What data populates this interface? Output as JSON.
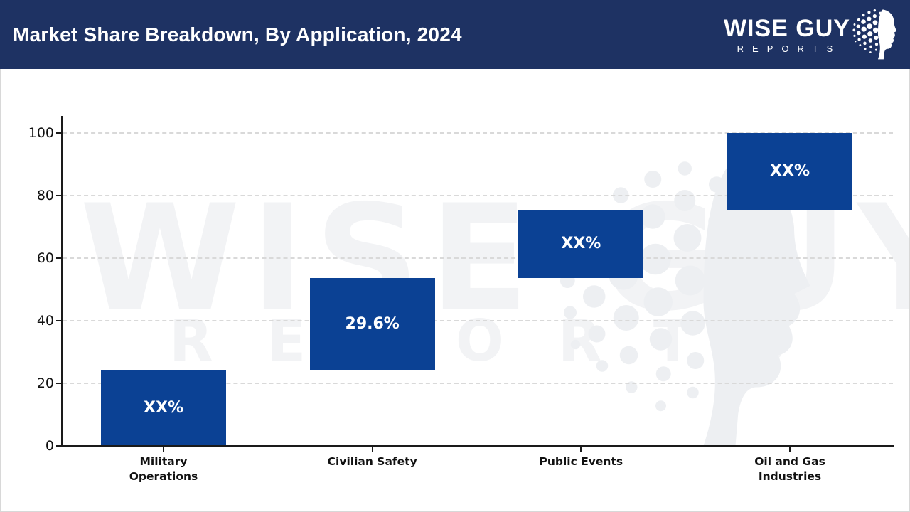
{
  "header": {
    "title": "Market Share Breakdown, By Application, 2024",
    "logo": {
      "wordmark": "WISE GUY",
      "subtext": "REPORTS"
    }
  },
  "watermark": {
    "wordmark": "WISE GUY",
    "subtext": "REPORTS"
  },
  "colors": {
    "header_bg": "#1e3263",
    "bar": "#0b4194",
    "bar_label_text": "#ffffff",
    "axis": "#1a1a1a",
    "grid": "#d9d9d9",
    "tick_label_text": "#111111",
    "watermark_text": "#f2f3f5",
    "watermark_face": "#edeff2",
    "edge_border": "#d8d8d8",
    "page_bg": "#ffffff"
  },
  "chart_data": {
    "type": "bar",
    "subtype": "floating-waterfall",
    "title": "Market Share Breakdown, By Application, 2024",
    "categories": [
      "Military\nOperations",
      "Civilian Safety",
      "Public Events",
      "Oil and Gas\nIndustries"
    ],
    "segments": [
      {
        "category": "Military\nOperations",
        "start": 0,
        "end": 24,
        "value": 24,
        "label": "XX%"
      },
      {
        "category": "Civilian Safety",
        "start": 24,
        "end": 53.6,
        "value": 29.6,
        "label": "29.6%"
      },
      {
        "category": "Public Events",
        "start": 53.6,
        "end": 75.4,
        "value": 21.8,
        "label": "XX%"
      },
      {
        "category": "Oil and Gas\nIndustries",
        "start": 75.4,
        "end": 100,
        "value": 24.6,
        "label": "XX%"
      }
    ],
    "xlabel": "",
    "ylabel": "",
    "ylim": [
      0,
      100
    ],
    "yticks": [
      0,
      20,
      40,
      60,
      80,
      100
    ],
    "grid": "horizontal-dashed",
    "legend": "none",
    "bar_color": "#0b4194"
  }
}
